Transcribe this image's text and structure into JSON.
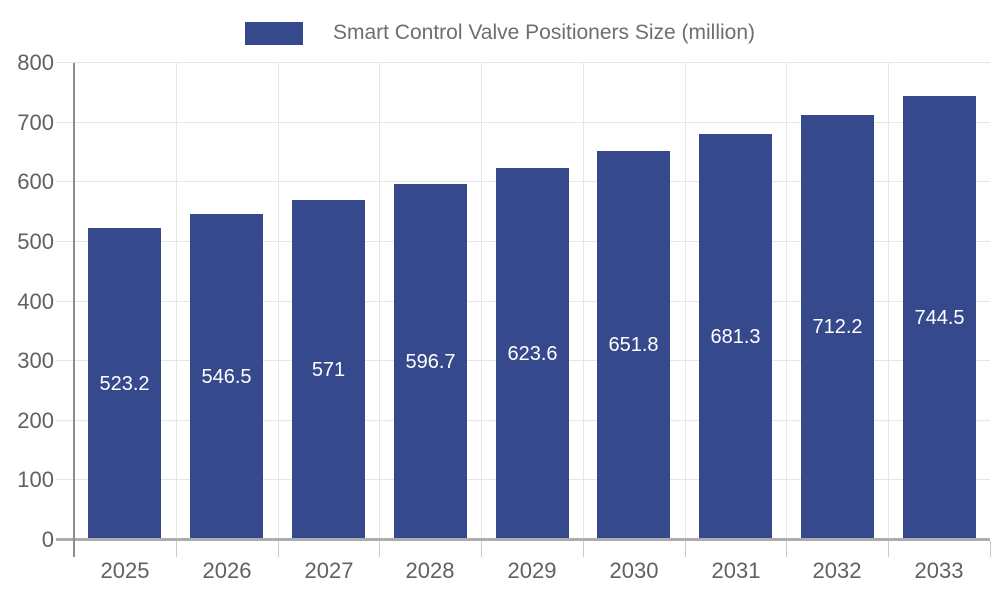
{
  "legend": {
    "label": "Smart Control Valve Positioners Size (million)"
  },
  "chart_data": {
    "type": "bar",
    "title": "Smart Control Valve Positioners Size (million)",
    "categories": [
      "2025",
      "2026",
      "2027",
      "2028",
      "2029",
      "2030",
      "2031",
      "2032",
      "2033"
    ],
    "series": [
      {
        "name": "Smart Control Valve Positioners Size (million)",
        "values": [
          523.2,
          546.5,
          571,
          596.7,
          623.6,
          651.8,
          681.3,
          712.2,
          744.5
        ]
      }
    ],
    "value_labels": [
      "523.2",
      "546.5",
      "571",
      "596.7",
      "623.6",
      "651.8",
      "681.3",
      "712.2",
      "744.5"
    ],
    "xlabel": "",
    "ylabel": "",
    "ylim": [
      0,
      800
    ],
    "yticks": [
      0,
      100,
      200,
      300,
      400,
      500,
      600,
      700,
      800
    ],
    "grid": true,
    "legend_position": "top-center",
    "bar_color": "#36498c",
    "value_label_color": "#ffffff"
  },
  "colors": {
    "bar": "#36498c",
    "grid_line": "#e6e6e6",
    "axis_line": "#8c8c8c",
    "baseline": "#adadad",
    "tick": "#c9c9c9",
    "tick_label": "#616161",
    "legend_text": "#6e6e6e",
    "value_label": "#ffffff",
    "background": "#ffffff"
  }
}
